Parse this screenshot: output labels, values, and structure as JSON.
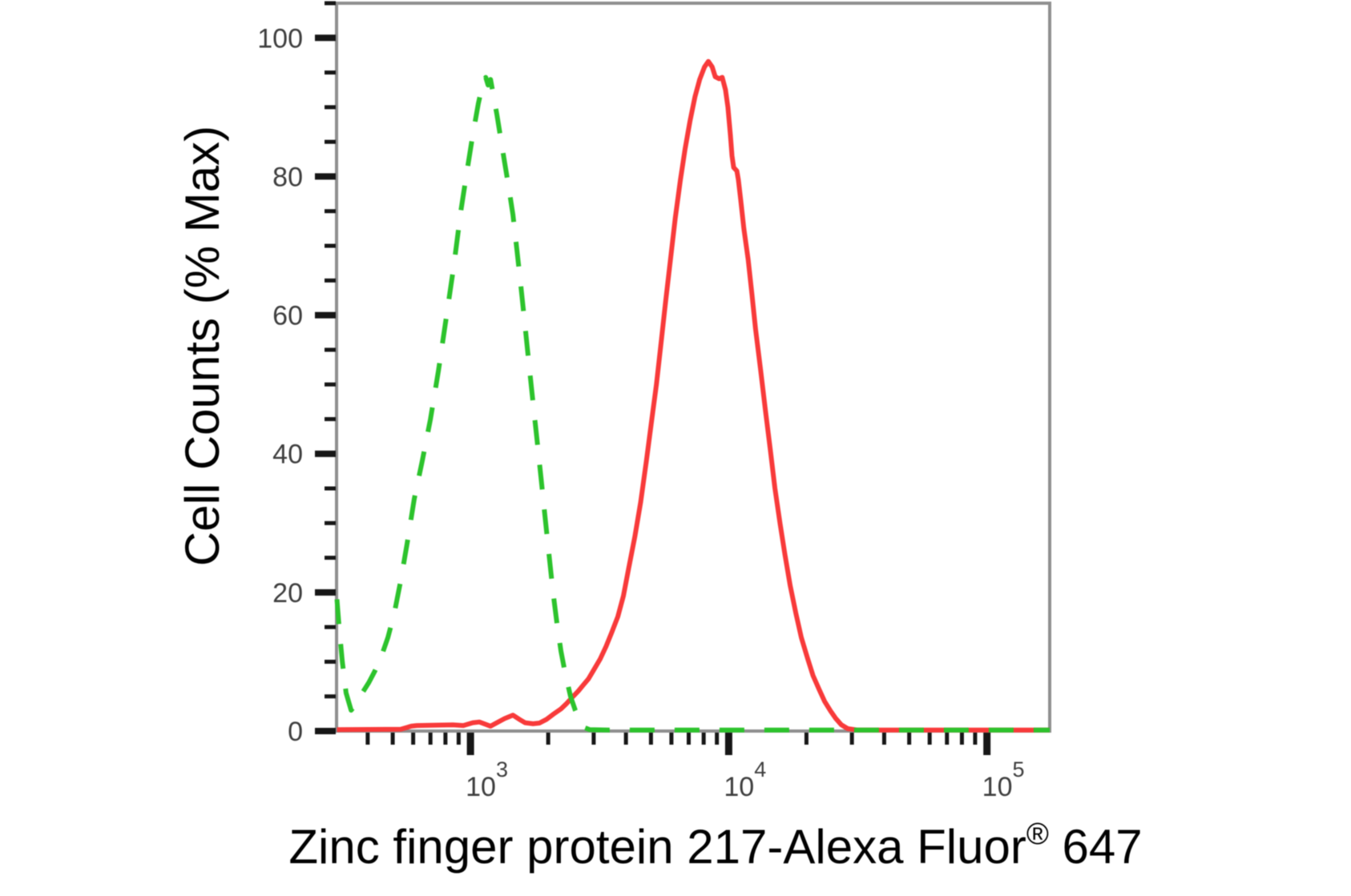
{
  "figure": {
    "ylabel": "Cell Counts (% Max)",
    "xlabel": {
      "main": "Zinc finger protein 217-Alexa Fluor",
      "sup": "®",
      "tail": " 647"
    }
  },
  "chart_data": {
    "type": "line",
    "title": "",
    "xlabel": "Zinc finger protein 217-Alexa Fluor® 647",
    "ylabel": "Cell Counts (% Max)",
    "legend": "none",
    "grid": false,
    "x_axis": {
      "scale": "log",
      "range": [
        303,
        175000
      ],
      "major_ticks": [
        {
          "value": 1000,
          "label_base": "10",
          "label_exp": "3"
        },
        {
          "value": 10000,
          "label_base": "10",
          "label_exp": "4"
        },
        {
          "value": 100000,
          "label_base": "10",
          "label_exp": "5"
        }
      ]
    },
    "y_axis": {
      "range": [
        0,
        105
      ],
      "major_tick_values": [
        100,
        80,
        60,
        40,
        20,
        0
      ],
      "tick_labels": [
        "100",
        "80",
        "60",
        "40",
        "20",
        "0"
      ],
      "minor_tick_step": 5
    },
    "style": {
      "frame_color": "#8f8f8f",
      "tick_color": "#161616",
      "tick_label_color": "#3e3e3e",
      "background": "#ffffff"
    },
    "series": [
      {
        "name": "solid red curve (stained sample)",
        "color": "#f83a3a",
        "line_style": "solid",
        "points": [
          [
            304,
            0.2
          ],
          [
            537,
            0.25
          ],
          [
            590,
            0.7
          ],
          [
            620,
            0.8
          ],
          [
            740,
            0.85
          ],
          [
            855,
            0.9
          ],
          [
            938,
            0.8
          ],
          [
            1021,
            1.2
          ],
          [
            1082,
            1.3
          ],
          [
            1139,
            1.0
          ],
          [
            1196,
            0.7
          ],
          [
            1265,
            1.2
          ],
          [
            1357,
            1.8
          ],
          [
            1460,
            2.3
          ],
          [
            1545,
            1.7
          ],
          [
            1626,
            1.2
          ],
          [
            1747,
            1.05
          ],
          [
            1850,
            1.15
          ],
          [
            1972,
            1.7
          ],
          [
            2088,
            2.4
          ],
          [
            2242,
            3.2
          ],
          [
            2360,
            4.0
          ],
          [
            2470,
            4.8
          ],
          [
            2620,
            5.8
          ],
          [
            2728,
            6.6
          ],
          [
            2860,
            7.5
          ],
          [
            3000,
            8.8
          ],
          [
            3180,
            10.4
          ],
          [
            3350,
            12.2
          ],
          [
            3520,
            14.2
          ],
          [
            3720,
            16.5
          ],
          [
            3910,
            19.5
          ],
          [
            4100,
            23.5
          ],
          [
            4330,
            28
          ],
          [
            4560,
            33
          ],
          [
            4800,
            39
          ],
          [
            5020,
            44.5
          ],
          [
            5250,
            50
          ],
          [
            5470,
            56
          ],
          [
            5700,
            62
          ],
          [
            5950,
            68
          ],
          [
            6210,
            74
          ],
          [
            6500,
            79.5
          ],
          [
            6780,
            84
          ],
          [
            7080,
            88
          ],
          [
            7400,
            91.5
          ],
          [
            7720,
            94
          ],
          [
            8060,
            95.8
          ],
          [
            8340,
            96.6
          ],
          [
            8630,
            95.8
          ],
          [
            8870,
            94.4
          ],
          [
            9180,
            94.1
          ],
          [
            9440,
            94.3
          ],
          [
            9720,
            92.5
          ],
          [
            9930,
            90
          ],
          [
            10150,
            86
          ],
          [
            10300,
            83
          ],
          [
            10450,
            81.3
          ],
          [
            10760,
            80.8
          ],
          [
            10900,
            79.5
          ],
          [
            11140,
            76.5
          ],
          [
            11450,
            72.5
          ],
          [
            11900,
            68
          ],
          [
            12300,
            63
          ],
          [
            12700,
            58
          ],
          [
            13300,
            52
          ],
          [
            13900,
            46
          ],
          [
            14500,
            40.5
          ],
          [
            15100,
            35
          ],
          [
            15800,
            30
          ],
          [
            16500,
            25.5
          ],
          [
            17300,
            21
          ],
          [
            18200,
            17
          ],
          [
            19100,
            13.5
          ],
          [
            20200,
            10.5
          ],
          [
            21200,
            8
          ],
          [
            22400,
            6
          ],
          [
            23500,
            4.3
          ],
          [
            24800,
            2.9
          ],
          [
            26000,
            1.8
          ],
          [
            27300,
            0.9
          ],
          [
            28900,
            0.35
          ],
          [
            31500,
            0.15
          ],
          [
            175000,
            0.15
          ]
        ]
      },
      {
        "name": "dashed green curve (negative control)",
        "color": "#2cc32c",
        "line_style": "dashed",
        "points": [
          [
            304,
            19
          ],
          [
            310,
            15
          ],
          [
            319,
            10
          ],
          [
            330,
            5.5
          ],
          [
            345,
            3
          ],
          [
            362,
            4
          ],
          [
            381,
            5.5
          ],
          [
            404,
            7
          ],
          [
            427,
            8.7
          ],
          [
            452,
            10.8
          ],
          [
            479,
            13.5
          ],
          [
            507,
            17
          ],
          [
            537,
            21.7
          ],
          [
            568,
            27
          ],
          [
            606,
            33.5
          ],
          [
            651,
            39
          ],
          [
            700,
            45
          ],
          [
            752,
            52
          ],
          [
            801,
            59
          ],
          [
            861,
            67
          ],
          [
            918,
            75
          ],
          [
            972,
            81
          ],
          [
            1021,
            86
          ],
          [
            1072,
            90.5
          ],
          [
            1110,
            93
          ],
          [
            1146,
            94.3
          ],
          [
            1170,
            93.2
          ],
          [
            1196,
            94
          ],
          [
            1230,
            91.5
          ],
          [
            1265,
            89
          ],
          [
            1310,
            85.5
          ],
          [
            1357,
            82
          ],
          [
            1406,
            78.5
          ],
          [
            1460,
            74.5
          ],
          [
            1512,
            69.5
          ],
          [
            1569,
            64
          ],
          [
            1626,
            58.5
          ],
          [
            1685,
            53
          ],
          [
            1746,
            47.5
          ],
          [
            1810,
            42
          ],
          [
            1876,
            36.5
          ],
          [
            1943,
            31
          ],
          [
            2014,
            25.5
          ],
          [
            2088,
            20
          ],
          [
            2163,
            15.5
          ],
          [
            2242,
            11.5
          ],
          [
            2323,
            8.5
          ],
          [
            2441,
            5
          ],
          [
            2545,
            3
          ],
          [
            2652,
            1.5
          ],
          [
            2762,
            0.5
          ],
          [
            2898,
            0.2
          ],
          [
            3440,
            0.15
          ],
          [
            175000,
            0.15
          ]
        ]
      }
    ]
  }
}
